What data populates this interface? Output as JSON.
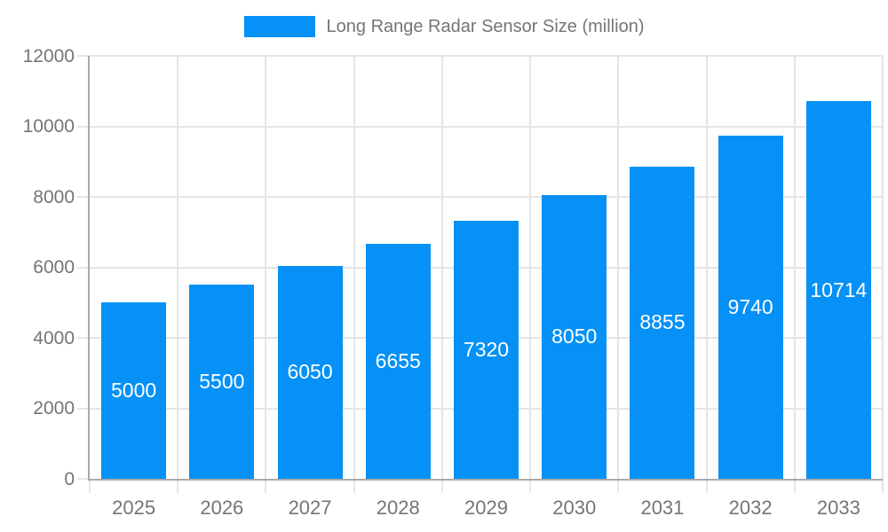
{
  "legend": {
    "label": "Long Range Radar Sensor Size (million)"
  },
  "colors": {
    "bar": "#0591F5",
    "grid": "#e5e5e5",
    "tick": "#e5e5e5",
    "axis": "#aaaaaa",
    "axis_label": "#757575",
    "value_label": "#ffffff",
    "legend_label": "#757575",
    "background": "#ffffff"
  },
  "chart_data": {
    "type": "bar",
    "title": "",
    "legend_label": "Long Range Radar Sensor Size (million)",
    "categories": [
      "2025",
      "2026",
      "2027",
      "2028",
      "2029",
      "2030",
      "2031",
      "2032",
      "2033"
    ],
    "values": [
      5000,
      5500,
      6050,
      6655,
      7320,
      8050,
      8855,
      9740,
      10714
    ],
    "xlabel": "",
    "ylabel": "",
    "ylim": [
      0,
      12000
    ],
    "yticks": [
      0,
      2000,
      4000,
      6000,
      8000,
      10000,
      12000
    ],
    "grid": true,
    "gridlines": "horizontal-and-vertical",
    "legend_position": "top-center",
    "value_label_position": "inside-center",
    "bar_width_fraction": 0.74
  }
}
